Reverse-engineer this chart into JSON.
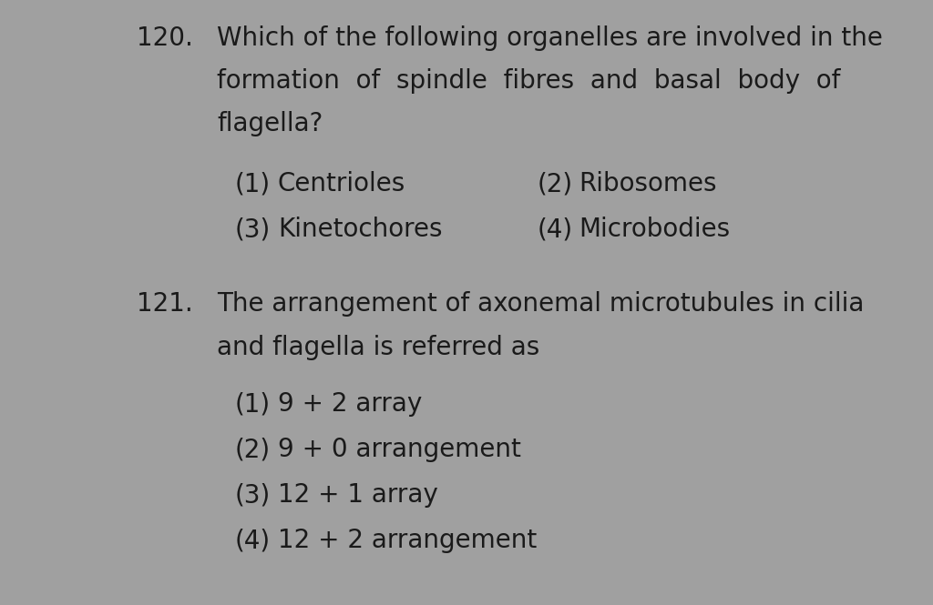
{
  "background_color": "#a0a0a0",
  "text_color": "#1a1a1a",
  "font_family": "DejaVu Sans",
  "q120_number": "120.",
  "q120_line1": "Which of the following organelles are involved in the",
  "q120_line2": "formation  of  spindle  fibres  and  basal  body  of",
  "q120_line3": "flagella?",
  "q120_opt1_num": "(1)",
  "q120_opt1_text": "Centrioles",
  "q120_opt2_num": "(2)",
  "q120_opt2_text": "Ribosomes",
  "q120_opt3_num": "(3)",
  "q120_opt3_text": "Kinetochores",
  "q120_opt4_num": "(4)",
  "q120_opt4_text": "Microbodies",
  "q121_number": "121.",
  "q121_line1": "The arrangement of axonemal microtubules in cilia",
  "q121_line2": "and flagella is referred as",
  "q121_opt1_num": "(1)",
  "q121_opt1_text": "9 + 2 array",
  "q121_opt2_num": "(2)",
  "q121_opt2_text": "9 + 0 arrangement",
  "q121_opt3_num": "(3)",
  "q121_opt3_text": "12 + 1 array",
  "q121_opt4_num": "(4)",
  "q121_opt4_text": "12 + 2 arrangement",
  "font_size_question": 20,
  "font_size_options": 20,
  "fig_width": 10.24,
  "fig_height": 6.65,
  "dpi": 100
}
